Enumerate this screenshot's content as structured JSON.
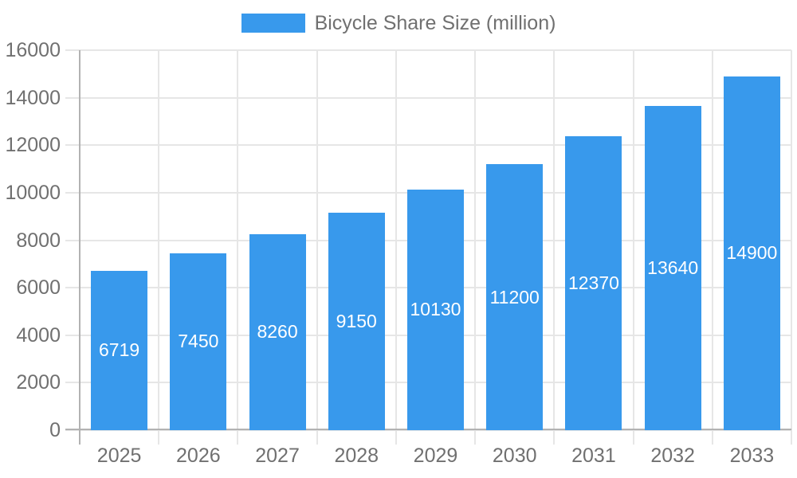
{
  "legend": {
    "label": "Bicycle Share Size (million)"
  },
  "chart_data": {
    "type": "bar",
    "title": "Bicycle Share Size (million)",
    "categories": [
      "2025",
      "2026",
      "2027",
      "2028",
      "2029",
      "2030",
      "2031",
      "2032",
      "2033"
    ],
    "values": [
      6719,
      7450,
      8260,
      9150,
      10130,
      11200,
      12370,
      13640,
      14900
    ],
    "series": [
      {
        "name": "Bicycle Share Size (million)",
        "values": [
          6719,
          7450,
          8260,
          9150,
          10130,
          11200,
          12370,
          13640,
          14900
        ]
      }
    ],
    "xlabel": "",
    "ylabel": "",
    "ylim": [
      0,
      16000
    ],
    "ytick_step": 2000,
    "ytick_labels": [
      "0",
      "2000",
      "4000",
      "6000",
      "8000",
      "10000",
      "12000",
      "14000",
      "16000"
    ],
    "grid": "on",
    "legend_position": "top",
    "value_labels": "inside-center-white",
    "colors": {
      "bar": "#3899EC",
      "grid": "#e6e6e6",
      "axis": "#b2b2b2",
      "text": "#707070",
      "value_label": "#ffffff",
      "background": "#ffffff"
    }
  }
}
